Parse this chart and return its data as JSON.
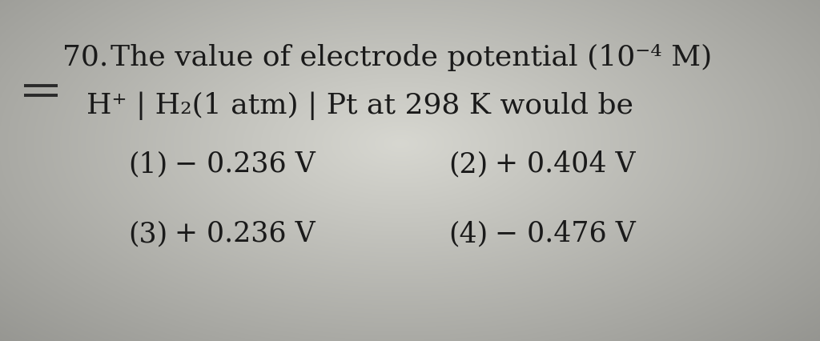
{
  "bg_center": "#c8c8c0",
  "bg_edge": "#8a8a82",
  "text_color": "#1a1a1a",
  "question_num": "70.",
  "line1": "The value of electrode potential (10⁻⁴ M)",
  "line2": "H⁺ | H₂(1 atm) | Pt at 298 K would be",
  "opt1_num": "(1)",
  "opt1_val": "− 0.236 V",
  "opt2_num": "(2)",
  "opt2_val": "+ 0.404 V",
  "opt3_num": "(3)",
  "opt3_val": "+ 0.236 V",
  "opt4_num": "(4)",
  "opt4_val": "− 0.476 V",
  "fontsize_main": 26,
  "fontsize_opt": 25
}
